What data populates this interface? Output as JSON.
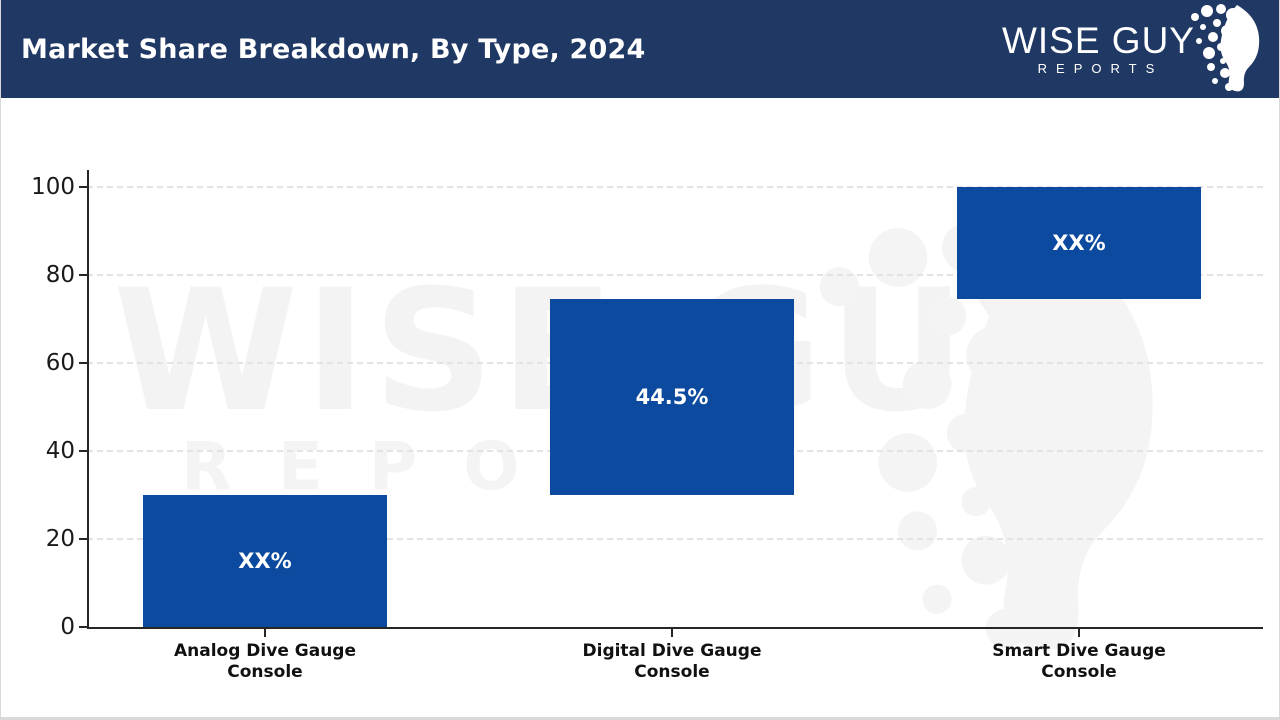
{
  "header": {
    "title": "Market Share Breakdown, By Type, 2024",
    "bg_color": "#203864",
    "logo": {
      "line1": "WISE GUY",
      "line2": "REPORTS"
    }
  },
  "watermark": {
    "line1": "WISE GUY",
    "line2": "REPORTS"
  },
  "chart_data": {
    "type": "bar",
    "variant": "floating-segment (waterfall style) vertical bars",
    "title": "Market Share Breakdown, By Type, 2024",
    "categories": [
      "Analog Dive Gauge Console",
      "Digital Dive Gauge Console",
      "Smart Dive Gauge Console"
    ],
    "categories_lines": [
      [
        "Analog Dive Gauge",
        "Console"
      ],
      [
        "Digital Dive Gauge",
        "Console"
      ],
      [
        "Smart Dive Gauge",
        "Console"
      ]
    ],
    "series": [
      {
        "name": "Analog Dive Gauge Console",
        "start": 0,
        "end": 30,
        "label": "XX%"
      },
      {
        "name": "Digital Dive Gauge Console",
        "start": 30,
        "end": 74.5,
        "label": "44.5%"
      },
      {
        "name": "Smart Dive Gauge Console",
        "start": 74.5,
        "end": 100,
        "label": "XX%"
      }
    ],
    "yticks": [
      0,
      20,
      40,
      60,
      80,
      100
    ],
    "ylim": [
      0,
      104
    ],
    "xlabel": "",
    "ylabel": "",
    "grid": "horizontal dashed",
    "legend": "none",
    "bar_color": "#0b4a9e",
    "bar_label_color": "#ffffff"
  }
}
